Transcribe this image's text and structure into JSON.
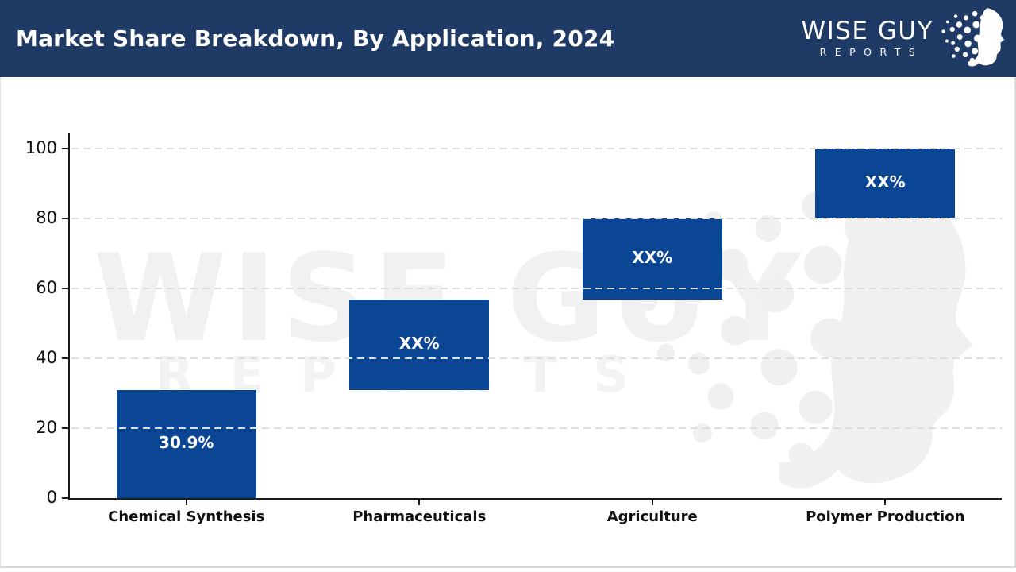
{
  "page": {
    "bg_color": "#ffffff",
    "frame_color": "#d9d9d9"
  },
  "header": {
    "bg_color": "#203a66",
    "title": "Market Share Breakdown, By Application, 2024",
    "logo": {
      "line1": "WISE GUY",
      "line2": "REPORTS"
    }
  },
  "watermark": {
    "line1": "WISE GUY",
    "line2": "REPORTS"
  },
  "chart_data": {
    "type": "bar",
    "variant": "stepped stacked bars (cumulative market-share waterfall)",
    "title": "Market Share Breakdown, By Application, 2024",
    "categories": [
      "Chemical Synthesis",
      "Pharmaceuticals",
      "Agriculture",
      "Polymer Production"
    ],
    "series": [
      {
        "category": "Chemical Synthesis",
        "start": 0,
        "end": 30.9,
        "label": "30.9%"
      },
      {
        "category": "Pharmaceuticals",
        "start": 30.9,
        "end": 56.8,
        "label": "XX%"
      },
      {
        "category": "Agriculture",
        "start": 56.8,
        "end": 79.9,
        "label": "XX%"
      },
      {
        "category": "Polymer Production",
        "start": 79.9,
        "end": 100,
        "label": "XX%"
      }
    ],
    "bar_color": "#0b4694",
    "bar_label_color": "#ffffff",
    "xlabel": "",
    "ylabel": "",
    "ylim": [
      0,
      100
    ],
    "yticks": [
      0,
      20,
      40,
      60,
      80,
      100
    ],
    "grid": "horizontal dashed, drawn over bars",
    "grid_color": "#dddddd",
    "axis_color": "#1a1a1a",
    "legend": "none"
  }
}
